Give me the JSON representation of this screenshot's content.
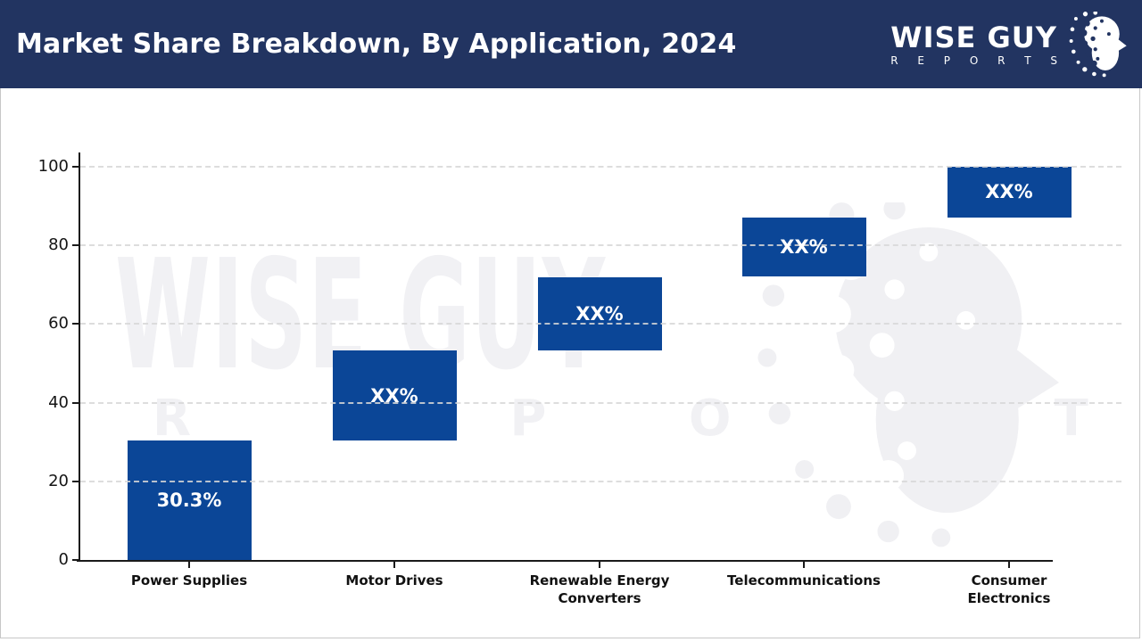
{
  "header": {
    "title": "Market Share Breakdown, By Application, 2024",
    "logo": {
      "name": "WISE GUY",
      "sub": "R E P O R T S",
      "icon": "wise-guy-head-icon"
    },
    "bg_color": "#223461"
  },
  "watermark": {
    "line1": "WISE GUY",
    "line2": "R E P O R T S"
  },
  "chart_data": {
    "type": "bar",
    "subtype": "waterfall",
    "title": "Market Share Breakdown, By Application, 2024",
    "categories": [
      "Power Supplies",
      "Motor Drives",
      "Renewable Energy Converters",
      "Telecommunications",
      "Consumer Electronics"
    ],
    "series": [
      {
        "name": "Market share (%)",
        "segments": [
          {
            "category": "Power Supplies",
            "start": 0,
            "end": 30.3,
            "label": "30.3%"
          },
          {
            "category": "Motor Drives",
            "start": 30.3,
            "end": 53.2,
            "label": "XX%"
          },
          {
            "category": "Renewable Energy Converters",
            "start": 53.2,
            "end": 71.9,
            "label": "XX%"
          },
          {
            "category": "Telecommunications",
            "start": 72.0,
            "end": 87.1,
            "label": "XX%"
          },
          {
            "category": "Consumer Electronics",
            "start": 87.1,
            "end": 100,
            "label": "XX%"
          }
        ]
      }
    ],
    "y_ticks": [
      0,
      20,
      40,
      60,
      80,
      100
    ],
    "ylim": [
      0,
      100
    ],
    "xlabel": "",
    "ylabel": "",
    "grid": "horizontal-dashed",
    "legend": "none",
    "colors": {
      "bar": "#0b4697",
      "grid": "#d8d8d8",
      "axis": "#1a1a1a",
      "bar_label_text": "#ffffff",
      "watermark": "#f1f1f4"
    }
  }
}
